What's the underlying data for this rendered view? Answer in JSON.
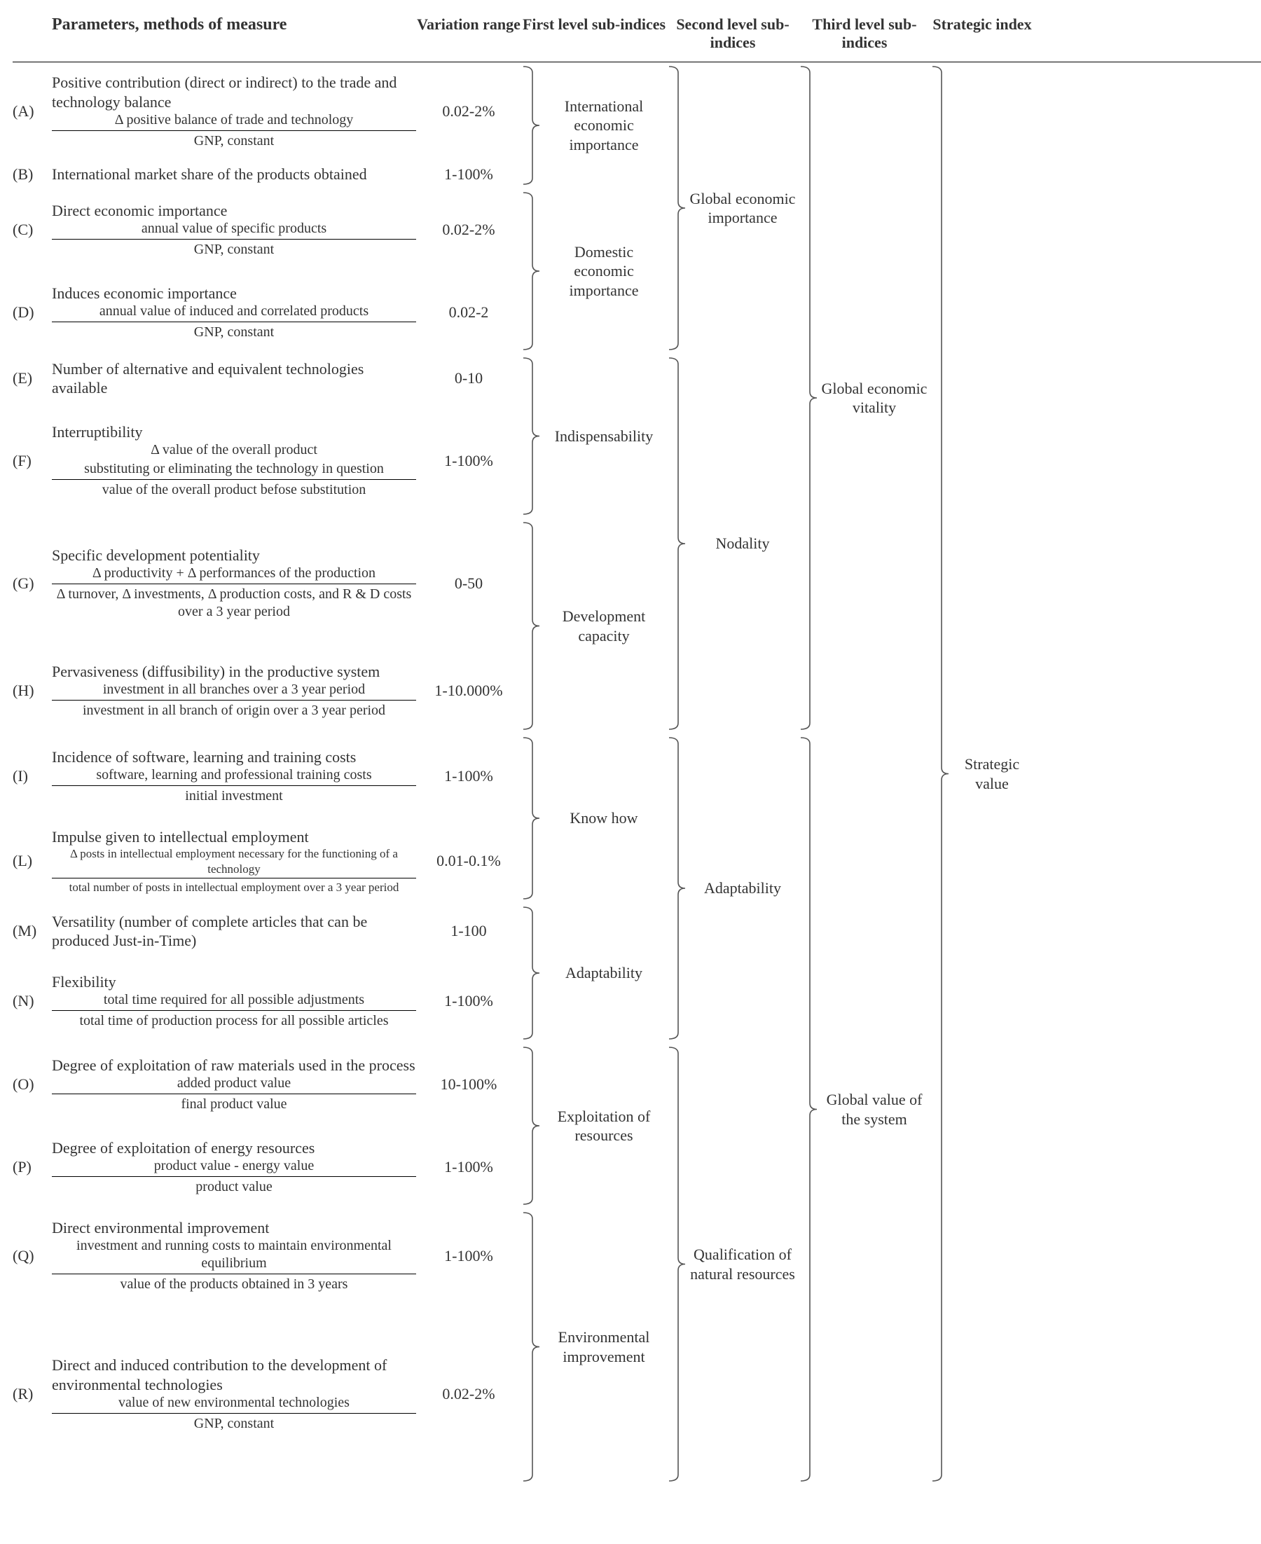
{
  "colors": {
    "ink": "#333333",
    "brace": "#555555"
  },
  "headers": {
    "param": "Parameters, methods of measure",
    "var": "Variation range",
    "l1": "First level sub-indices",
    "l2": "Second level sub-indices",
    "l3": "Third level sub-indices",
    "si": "Strategic index"
  },
  "rows": {
    "A": {
      "id": "(A)",
      "title": "Positive contribution (direct or indirect) to the trade and technology balance",
      "num": "Δ positive balance of trade and technology",
      "den": "GNP, constant",
      "var": "0.02-2%"
    },
    "B": {
      "id": "(B)",
      "title": "International market share of the products obtained",
      "var": "1-100%"
    },
    "C": {
      "id": "(C)",
      "title": "Direct economic importance",
      "num": "annual value of specific products",
      "den": "GNP, constant",
      "var": "0.02-2%"
    },
    "D": {
      "id": "(D)",
      "title": "Induces economic importance",
      "num": "annual value of induced and correlated products",
      "den": "GNP, constant",
      "var": "0.02-2"
    },
    "E": {
      "id": "(E)",
      "title": "Number of alternative and equivalent technologies available",
      "var": "0-10"
    },
    "F": {
      "id": "(F)",
      "title": "Interruptibility",
      "num_pre": "Δ value of the overall product",
      "num": "substituting or eliminating the technology in question",
      "den": "value of the overall product befose substitution",
      "var": "1-100%"
    },
    "G": {
      "id": "(G)",
      "title": "Specific development potentiality",
      "num": "Δ productivity + Δ performances of the production",
      "den": "Δ turnover, Δ investments, Δ production costs, and R & D costs over a 3 year period",
      "var": "0-50"
    },
    "H": {
      "id": "(H)",
      "title": "Pervasiveness (diffusibility) in the productive system",
      "num": "investment in all branches over a 3 year period",
      "den": "investment in all branch of origin over a 3 year period",
      "var": "1-10.000%"
    },
    "I": {
      "id": "(I)",
      "title": "Incidence of software, learning and training costs",
      "num": "software, learning and professional training costs",
      "den": "initial investment",
      "var": "1-100%"
    },
    "L": {
      "id": "(L)",
      "title": "Impulse given to intellectual employment",
      "num": "Δ posts in intellectual employment necessary for the functioning of a technology",
      "den": "total number of posts in intellectual employment over a 3 year period",
      "var": "0.01-0.1%"
    },
    "M": {
      "id": "(M)",
      "title": "Versatility (number of complete articles that can be produced Just-in-Time)",
      "var": "1-100"
    },
    "N": {
      "id": "(N)",
      "title": "Flexibility",
      "num": "total time required for all possible adjustments",
      "den": "total time of production process for all possible articles",
      "var": "1-100%"
    },
    "O": {
      "id": "(O)",
      "title": "Degree of exploitation of raw materials used in the process",
      "num": "added  product value",
      "den": "final product value",
      "var": "10-100%"
    },
    "P": {
      "id": "(P)",
      "title": "Degree of exploitation of energy resources",
      "num": "product value - energy value",
      "den": "product value",
      "var": "1-100%"
    },
    "Q": {
      "id": "(Q)",
      "title": "Direct environmental improvement",
      "num": "investment and running costs to maintain environmental equilibrium",
      "den": "value of the products obtained in 3 years",
      "var": "1-100%"
    },
    "R": {
      "id": "(R)",
      "title": "Direct and induced contribution to the development of environmental technologies",
      "num": "value of new environmental technologies",
      "den": "GNP, constant",
      "var": "0.02-2%"
    }
  },
  "level1": {
    "intl_econ": "International economic importance",
    "dom_econ": "Domestic economic importance",
    "indisp": "Indispensability",
    "dev_cap": "Development capacity",
    "knowhow": "Know how",
    "adapt": "Adaptability",
    "exploit": "Exploitation of resources",
    "env_imp": "Environmental improvement"
  },
  "level2": {
    "glob_econ": "Global economic importance",
    "nodality": "Nodality",
    "adapt": "Adaptability",
    "qual_nat": "Qualification of natural resources"
  },
  "level3": {
    "vitality": "Global economic vitality",
    "gvalue": "Global value of the system"
  },
  "strategic": {
    "value": "Strategic value"
  },
  "row_heights": {
    "A": 140,
    "B": 40,
    "C": 118,
    "D": 118,
    "E": 70,
    "F": 165,
    "G": 185,
    "H": 122,
    "I": 122,
    "L": 120,
    "M": 80,
    "N": 120,
    "O": 118,
    "P": 118,
    "Q": 135,
    "R": 260
  },
  "level1_groups": [
    {
      "key": "intl_econ",
      "span": [
        "A",
        "B"
      ]
    },
    {
      "key": "dom_econ",
      "span": [
        "C",
        "D"
      ]
    },
    {
      "key": "indisp",
      "span": [
        "E",
        "F"
      ]
    },
    {
      "key": "dev_cap",
      "span": [
        "G",
        "H"
      ]
    },
    {
      "key": "knowhow",
      "span": [
        "I",
        "L"
      ]
    },
    {
      "key": "adapt",
      "span": [
        "M",
        "N"
      ]
    },
    {
      "key": "exploit",
      "span": [
        "O",
        "P"
      ]
    },
    {
      "key": "env_imp",
      "span": [
        "Q",
        "R"
      ]
    }
  ],
  "level2_groups": [
    {
      "key": "glob_econ",
      "span": [
        "A",
        "D"
      ]
    },
    {
      "key": "nodality",
      "span": [
        "E",
        "H"
      ]
    },
    {
      "key": "adapt",
      "span": [
        "I",
        "N"
      ]
    },
    {
      "key": "qual_nat",
      "span": [
        "O",
        "R"
      ]
    }
  ],
  "level3_groups": [
    {
      "key": "vitality",
      "span": [
        "A",
        "H"
      ]
    },
    {
      "key": "gvalue",
      "span": [
        "I",
        "R"
      ]
    }
  ],
  "strategic_group": {
    "key": "value",
    "span": [
      "A",
      "R"
    ]
  }
}
